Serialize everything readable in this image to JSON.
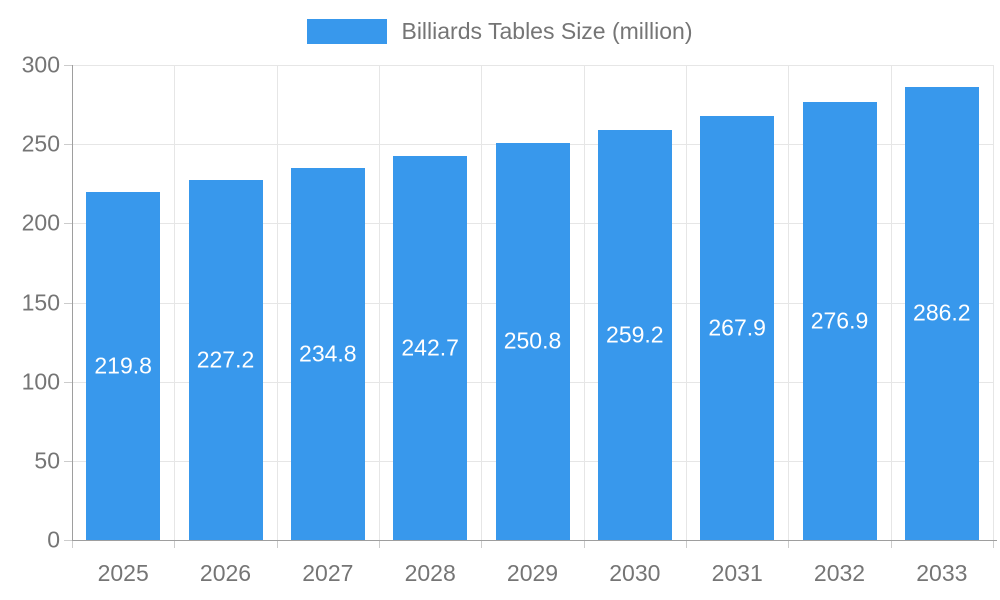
{
  "legend": {
    "label": "Billiards Tables Size (million)"
  },
  "colors": {
    "bar": "#3898EC",
    "axis_line": "#9e9e9e",
    "tick": "#cccccc",
    "grid": "#e6e6e6",
    "axis_text": "#757575",
    "value_text": "#ffffff",
    "background": "#ffffff"
  },
  "chart_data": {
    "type": "bar",
    "title": "",
    "xlabel": "",
    "ylabel": "",
    "categories": [
      "2025",
      "2026",
      "2027",
      "2028",
      "2029",
      "2030",
      "2031",
      "2032",
      "2033"
    ],
    "series": [
      {
        "name": "Billiards Tables Size (million)",
        "values": [
          219.8,
          227.2,
          234.8,
          242.7,
          250.8,
          259.2,
          267.9,
          276.9,
          286.2
        ]
      }
    ],
    "value_labels": [
      "219.8",
      "227.2",
      "234.8",
      "242.7",
      "250.8",
      "259.2",
      "267.9",
      "276.9",
      "286.2"
    ],
    "ylim": [
      0,
      300
    ],
    "yticks": [
      0,
      50,
      100,
      150,
      200,
      250,
      300
    ],
    "ytick_labels": [
      "0",
      "50",
      "100",
      "150",
      "200",
      "250",
      "300"
    ],
    "grid": true,
    "legend_position": "top"
  }
}
